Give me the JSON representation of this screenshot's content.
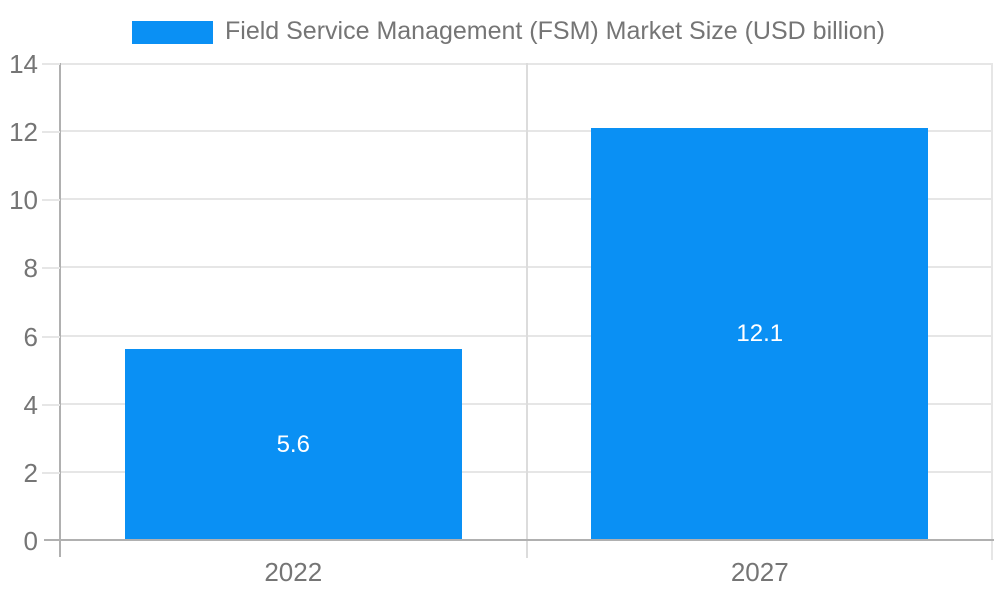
{
  "chart_data": {
    "type": "bar",
    "title": "Field Service Management (FSM) Market Size (USD billion)",
    "categories": [
      "2022",
      "2027"
    ],
    "series": [
      {
        "name": "Field Service Management (FSM) Market Size (USD billion)",
        "values": [
          5.6,
          12.1
        ],
        "value_labels": [
          "5.6",
          "12.1"
        ]
      }
    ],
    "xlabel": "",
    "ylabel": "",
    "ylim": [
      0,
      14
    ],
    "yticks": [
      0,
      2,
      4,
      6,
      8,
      10,
      12,
      14
    ],
    "grid": true,
    "legend_position": "top-center",
    "colors": {
      "bar": "#0a90f4",
      "grid": "#e6e6e6",
      "divider": "#dcdcdc",
      "axis": "#b0b0b0",
      "text": "#757575",
      "bar_label": "#ffffff",
      "background": "#ffffff"
    }
  }
}
